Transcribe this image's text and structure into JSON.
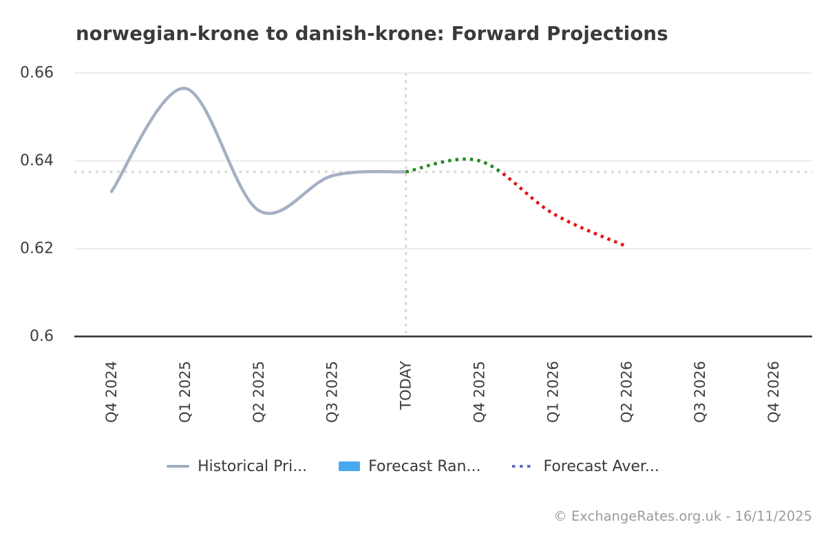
{
  "chart_data": {
    "type": "line",
    "title": "norwegian-krone to danish-krone: Forward Projections",
    "categories": [
      "Q4 2024",
      "Q1 2025",
      "Q2 2025",
      "Q3 2025",
      "TODAY",
      "Q4 2025",
      "Q1 2026",
      "Q2 2026",
      "Q3 2026",
      "Q4 2026"
    ],
    "y_axis": {
      "range": [
        0.6,
        0.66
      ],
      "ticks": [
        {
          "value": 0.6,
          "label": "0.6"
        },
        {
          "value": 0.62,
          "label": "0.62"
        },
        {
          "value": 0.64,
          "label": "0.64"
        },
        {
          "value": 0.66,
          "label": "0.66"
        }
      ]
    },
    "reference": {
      "today_index": 4,
      "today_value": 0.6375
    },
    "series": [
      {
        "name": "Historical Price",
        "start_index": 0,
        "style": "solid",
        "values": [
          0.633,
          0.6565,
          0.6287,
          0.6366,
          0.6375
        ],
        "color": "#a5b0c3"
      },
      {
        "name": "Forecast Average",
        "start_index": 4,
        "style": "dotted",
        "values": [
          0.6375,
          0.64,
          0.628,
          0.6205
        ],
        "color_above_today": "#1f8b1f",
        "color_below_today": "#e11212"
      }
    ],
    "grid": true,
    "legend_position": "bottom"
  },
  "legend": {
    "items": [
      {
        "label": "Historical Pri...",
        "swatch": "line",
        "color": "#9fabbf"
      },
      {
        "label": "Forecast Ran...",
        "swatch": "rect",
        "color": "#47a9f0"
      },
      {
        "label": "Forecast Aver...",
        "swatch": "dotted-line",
        "color": "#5b6ac0"
      }
    ]
  },
  "footer": {
    "copyright": "© ExchangeRates.org.uk - 16/11/2025"
  },
  "colors": {
    "grid": "#e7e7e7",
    "axis": "#303030",
    "reference": "#d9d9d9",
    "tick_text": "#3d3d3d",
    "title_text": "#3a3a3a",
    "copyright_text": "#9c9c9c"
  }
}
